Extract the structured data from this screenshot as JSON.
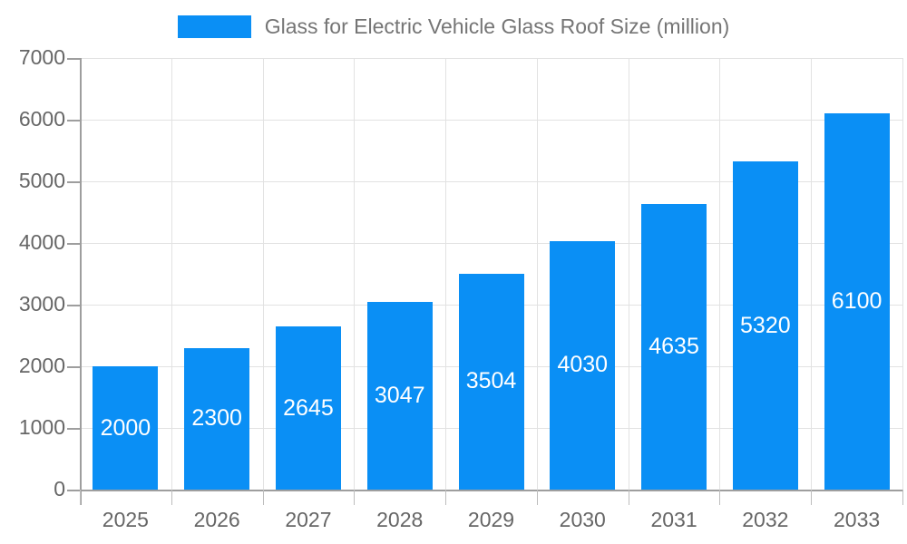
{
  "chart_data": {
    "type": "bar",
    "title": "Glass for Electric Vehicle Glass Roof Size (million)",
    "legend": [
      "Glass for Electric Vehicle Glass Roof Size (million)"
    ],
    "legend_position": "top-center",
    "categories": [
      "2025",
      "2026",
      "2027",
      "2028",
      "2029",
      "2030",
      "2031",
      "2032",
      "2033"
    ],
    "values": [
      2000,
      2300,
      2645,
      3047,
      3504,
      4030,
      4635,
      5320,
      6100
    ],
    "value_labels": [
      "2000",
      "2300",
      "2645",
      "3047",
      "3504",
      "4030",
      "4635",
      "5320",
      "6100"
    ],
    "xlabel": "",
    "ylabel": "",
    "ylim": [
      0,
      7000
    ],
    "ytick_step": 1000,
    "ytick_labels": [
      "0",
      "1000",
      "2000",
      "3000",
      "4000",
      "5000",
      "6000",
      "7000"
    ],
    "grid": true,
    "colors": {
      "bar": "#0a8ff5",
      "bar_value_text": "#ffffff",
      "axis_line": "#9e9e9e",
      "grid_line": "#e2e2e2",
      "tick_text": "#666666",
      "legend_text": "#757575",
      "background": "#ffffff"
    }
  }
}
